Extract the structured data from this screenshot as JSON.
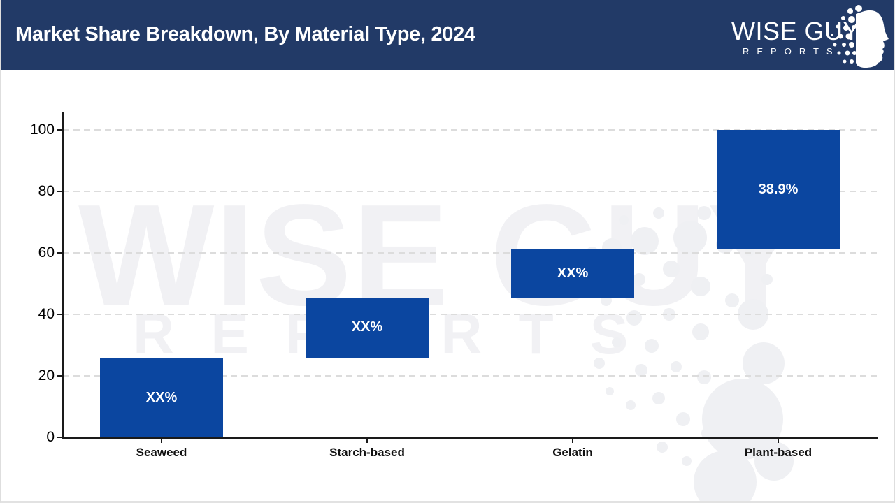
{
  "header": {
    "title": "Market Share Breakdown, By Material Type, 2024",
    "logo": {
      "wordmark": "WISE GUY",
      "subtext": "REPORTS",
      "head_icon": "dotted-face-profile"
    }
  },
  "watermark": {
    "line1": "WISE GUY",
    "line2": "REPORTS"
  },
  "colors": {
    "header_bg": "#223A67",
    "bar": "#0B46A0",
    "grid": "#DCDCDC",
    "axis": "#1A1A1A",
    "bar_label": "#FFFFFF",
    "watermark": "#F1F1F4"
  },
  "chart_data": {
    "type": "bar",
    "subtype": "waterfall-floating-bars",
    "title": "Market Share Breakdown, By Material Type, 2024",
    "categories": [
      "Seaweed",
      "Starch-based",
      "Gelatin",
      "Plant-based"
    ],
    "segments": [
      {
        "category": "Seaweed",
        "start": 0,
        "end": 25.9,
        "value": 25.9,
        "label": "XX%"
      },
      {
        "category": "Starch-based",
        "start": 25.9,
        "end": 45.5,
        "value": 19.6,
        "label": "XX%"
      },
      {
        "category": "Gelatin",
        "start": 45.5,
        "end": 61.1,
        "value": 15.6,
        "label": "XX%"
      },
      {
        "category": "Plant-based",
        "start": 61.1,
        "end": 100,
        "value": 38.9,
        "label": "38.9%"
      }
    ],
    "yticks": [
      0,
      20,
      40,
      60,
      80,
      100
    ],
    "ylim": [
      0,
      106
    ],
    "xlabel": "",
    "ylabel": "",
    "grid": "horizontal-dashed",
    "legend": null,
    "bar_color": "#0B46A0"
  }
}
